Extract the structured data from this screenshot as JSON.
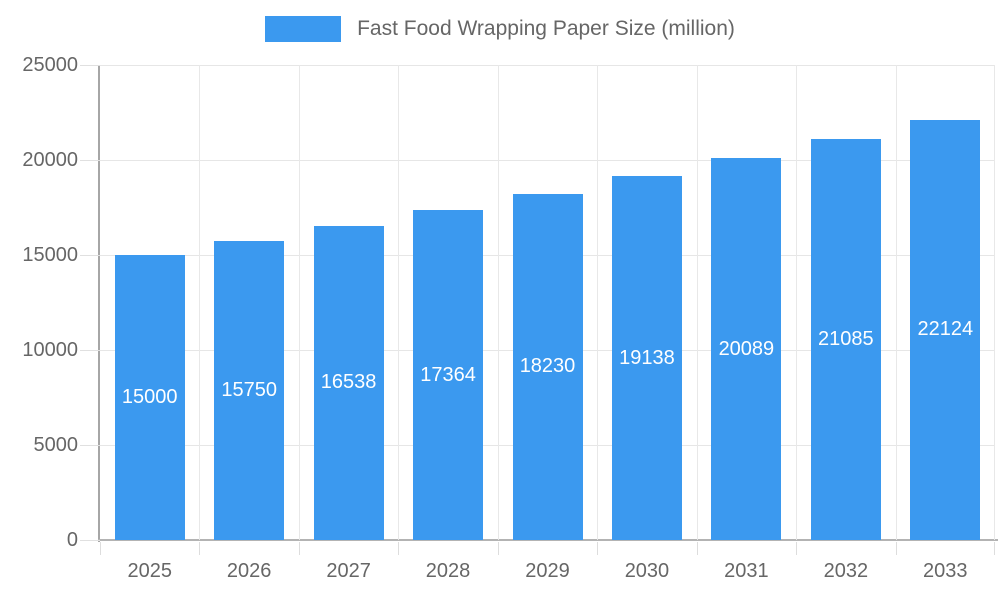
{
  "chart_data": {
    "type": "bar",
    "title": "",
    "legend_label": "Fast Food Wrapping Paper Size (million)",
    "legend_position": "top-center",
    "categories": [
      "2025",
      "2026",
      "2027",
      "2028",
      "2029",
      "2030",
      "2031",
      "2032",
      "2033"
    ],
    "series": [
      {
        "name": "Fast Food Wrapping Paper Size (million)",
        "values": [
          15000,
          15750,
          16538,
          17364,
          18230,
          19138,
          20089,
          21085,
          22124
        ]
      }
    ],
    "value_labels": [
      "15000",
      "15750",
      "16538",
      "17364",
      "18230",
      "19138",
      "20089",
      "21085",
      "22124"
    ],
    "value_labels_position": "inside-center",
    "xlabel": "",
    "ylabel": "",
    "ylim": [
      0,
      25000
    ],
    "yticks": [
      0,
      5000,
      10000,
      15000,
      20000,
      25000
    ],
    "grid": true,
    "colors": {
      "bar": "#3B99EF",
      "value_label": "#FFFFFF",
      "axis_tick_label": "#666666",
      "legend_text": "#666666",
      "gridline": "#E6E6E6",
      "axis_line": "#A6A6A6"
    }
  }
}
